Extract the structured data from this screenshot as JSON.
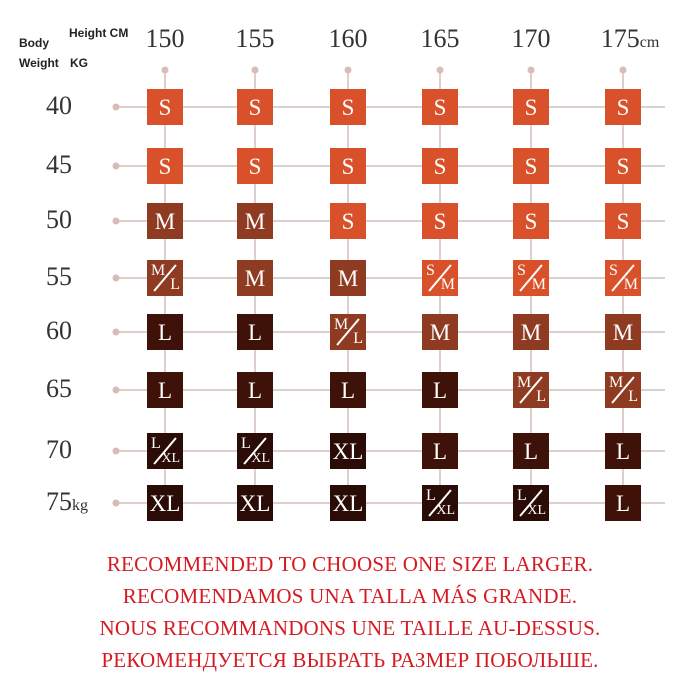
{
  "header": {
    "body_label": "Body",
    "weight_label": "Weight",
    "weight_unit": "KG",
    "height_label": "Height CM",
    "height_unit": "cm",
    "weight_last_suffix": "kg"
  },
  "heights": [
    "150",
    "155",
    "160",
    "165",
    "170",
    "175"
  ],
  "weights": [
    "40",
    "45",
    "50",
    "55",
    "60",
    "65",
    "70",
    "75"
  ],
  "grid": [
    [
      "S",
      "S",
      "S",
      "S",
      "S",
      "S"
    ],
    [
      "S",
      "S",
      "S",
      "S",
      "S",
      "S"
    ],
    [
      "M",
      "M",
      "S",
      "S",
      "S",
      "S"
    ],
    [
      "M/L",
      "M",
      "M",
      "S/M",
      "S/M",
      "S/M"
    ],
    [
      "L",
      "L",
      "M/L",
      "M",
      "M",
      "M"
    ],
    [
      "L",
      "L",
      "L",
      "L",
      "M/L",
      "M/L"
    ],
    [
      "L/XL",
      "L/XL",
      "XL",
      "L",
      "L",
      "L"
    ],
    [
      "XL",
      "XL",
      "XL",
      "L/XL",
      "L/XL",
      "L"
    ]
  ],
  "size_colors": {
    "S": "#d9512a",
    "S/M": "#d9512a",
    "M": "#8f3b22",
    "M/L": "#8f3b22",
    "L": "#3e1209",
    "L/XL": "#2b0b06",
    "XL": "#2b0b06"
  },
  "notes": [
    "RECOMMENDED TO CHOOSE ONE SIZE LARGER.",
    "RECOMENDAMOS UNA TALLA MÁS GRANDE.",
    "NOUS RECOMMANDONS UNE TAILLE AU-DESSUS.",
    "РЕКОМЕНДУЕТСЯ ВЫБРАТЬ РАЗМЕР ПОБОЛЬШЕ."
  ]
}
